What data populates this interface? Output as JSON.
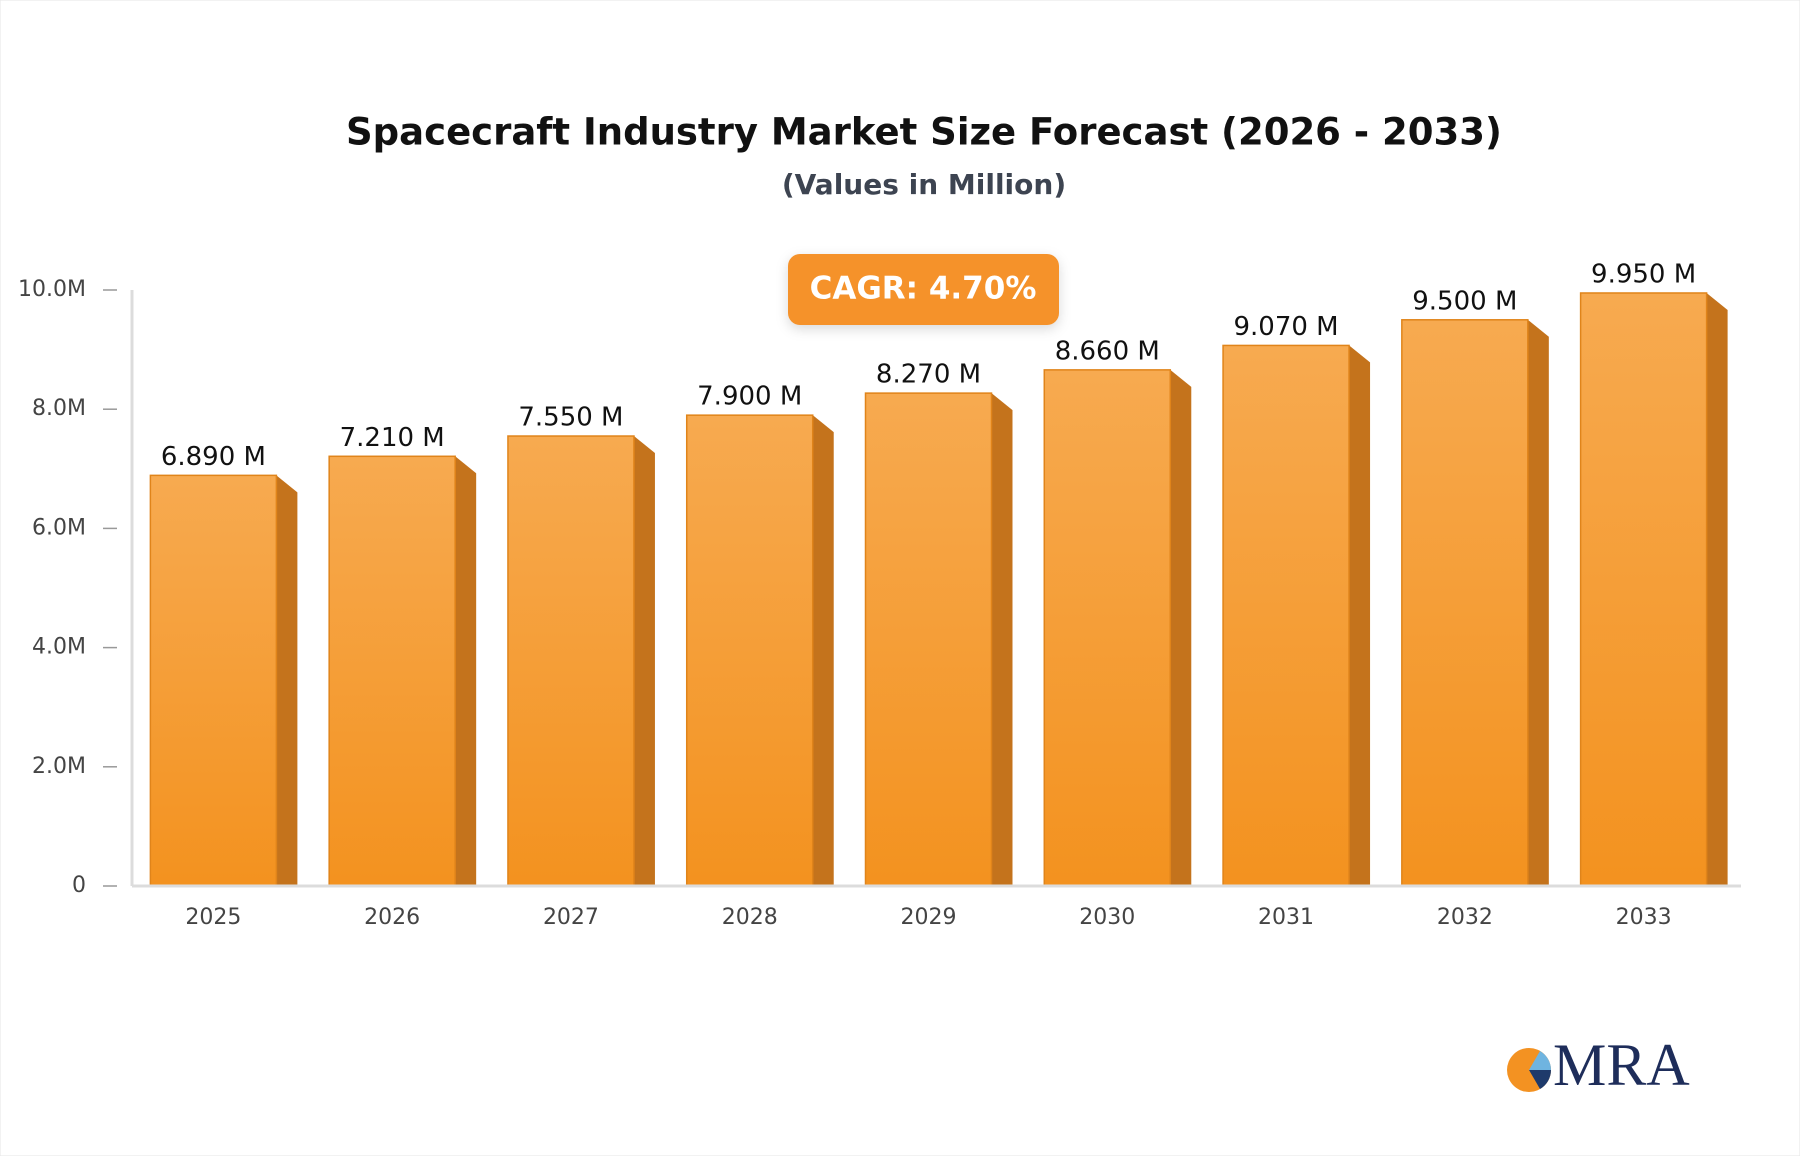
{
  "chart_data": {
    "type": "bar3d",
    "title": "Spacecraft Industry Market Size Forecast (2026 - 2033)",
    "subtitle": "(Values in Million)",
    "annotation": "CAGR: 4.70%",
    "categories": [
      "2025",
      "2026",
      "2027",
      "2028",
      "2029",
      "2030",
      "2031",
      "2032",
      "2033"
    ],
    "values": [
      6.89,
      7.21,
      7.55,
      7.9,
      8.27,
      8.66,
      9.07,
      9.5,
      9.95
    ],
    "value_labels": [
      "6.890 M",
      "7.210 M",
      "7.550 M",
      "7.900 M",
      "8.270 M",
      "8.660 M",
      "9.070 M",
      "9.500 M",
      "9.950 M"
    ],
    "color": "#f5962a",
    "ylim": [
      0,
      10
    ],
    "yticks": [
      0,
      {
        "value": 2,
        "label": "2.0M"
      },
      {
        "value": 4,
        "label": "4.0M"
      },
      {
        "value": 6,
        "label": "6.0M"
      },
      {
        "value": 8,
        "label": "8.0M"
      },
      {
        "value": 10,
        "label": "10.0M"
      }
    ]
  },
  "logo": "MRA"
}
